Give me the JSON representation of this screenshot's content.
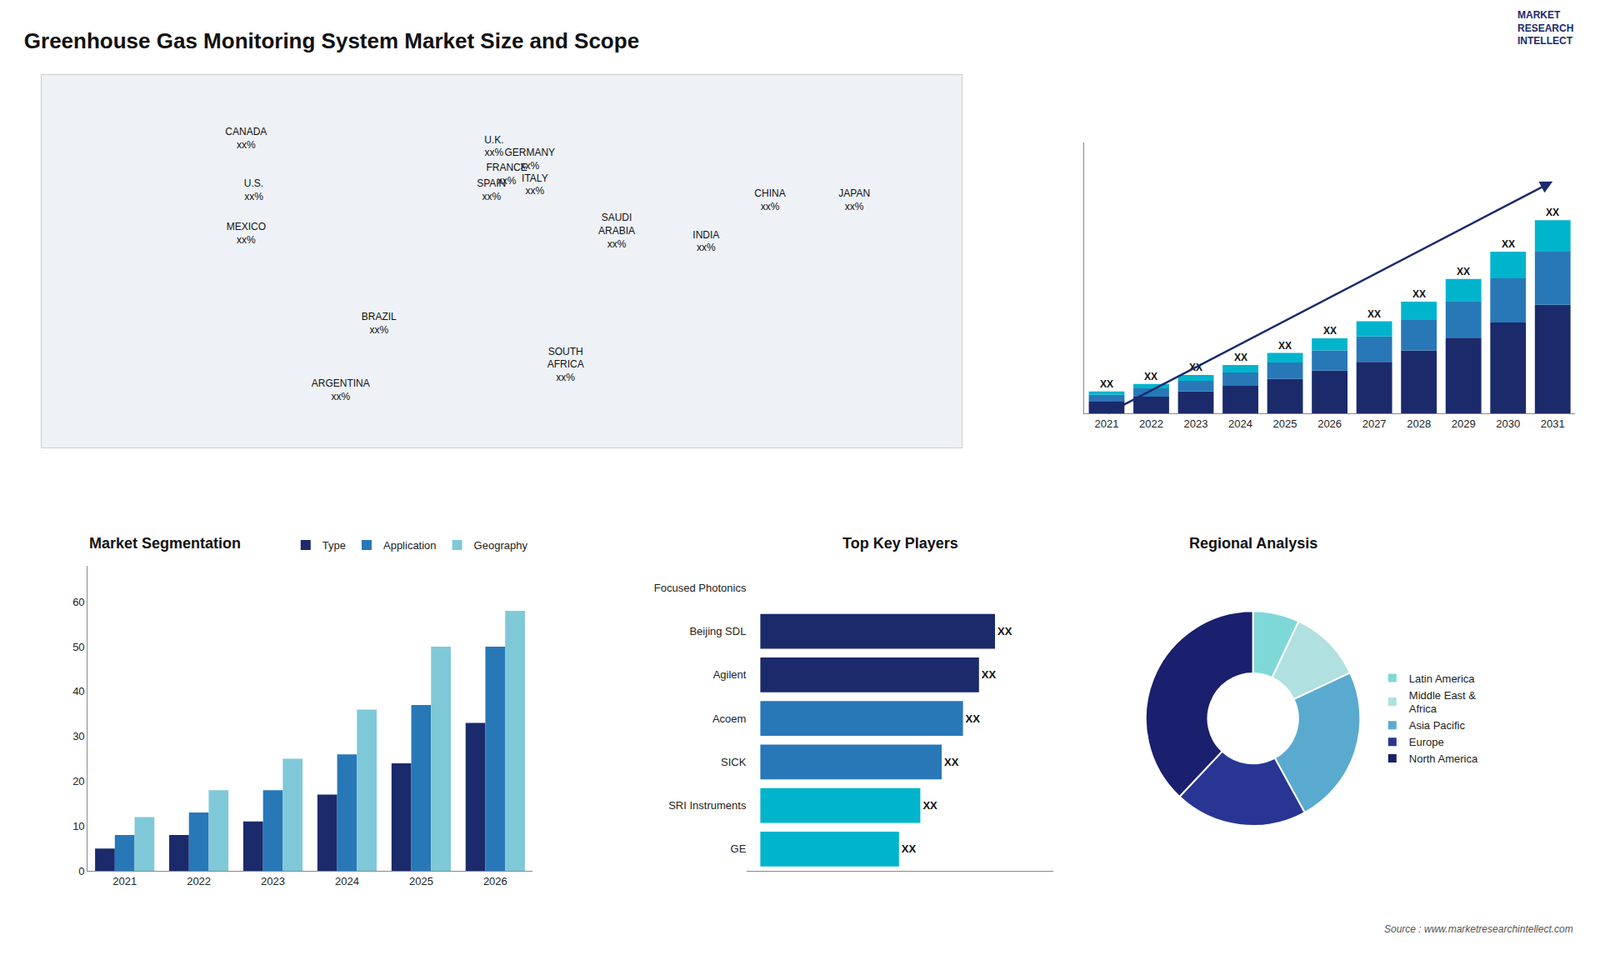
{
  "title": "Greenhouse Gas Monitoring System Market Size and Scope",
  "annotations": [
    "Source : www.marketresearchintellect.com",
    "MARKET\nRESEARCH\nINTELLECT"
  ],
  "chart_data": [
    {
      "type": "scatter",
      "marker": "none",
      "x": [
        -100,
        -97,
        -100,
        -48,
        -63,
        -3,
        2,
        -4,
        11,
        13,
        45,
        25,
        105,
        80,
        138
      ],
      "values": [
        60,
        40,
        23,
        -12,
        -38,
        57,
        46,
        40,
        52,
        42,
        24,
        -28,
        36,
        20,
        36
      ],
      "annotations": [
        "CANADA\nxx%",
        "U.S.\nxx%",
        "MEXICO\nxx%",
        "BRAZIL\nxx%",
        "ARGENTINA\nxx%",
        "U.K.\nxx%",
        "FRANCE\nxx%",
        "SPAIN\nxx%",
        "GERMANY\nxx%",
        "ITALY\nxx%",
        "SAUDI\nARABIA\nxx%",
        "SOUTH\nAFRICA\nxx%",
        "CHINA\nxx%",
        "INDIA\nxx%",
        "JAPAN\nxx%"
      ],
      "xlim": [
        -180,
        180
      ],
      "ylim": [
        -60,
        85
      ],
      "tick_labels": false,
      "grid": false
    },
    {
      "type": "bar",
      "stacked": true,
      "categories": [
        "2021",
        "2022",
        "2023",
        "2024",
        "2025",
        "2026",
        "2027",
        "2028",
        "2029",
        "2030",
        "2031"
      ],
      "series": [
        {
          "color": "#1b2a6b",
          "values": [
            1.0,
            1.35,
            1.75,
            2.2,
            2.75,
            3.4,
            4.1,
            5.0,
            6.0,
            7.2,
            8.6
          ]
        },
        {
          "color": "#2878b8",
          "values": [
            0.5,
            0.65,
            0.85,
            1.05,
            1.3,
            1.6,
            2.0,
            2.4,
            2.9,
            3.5,
            4.2
          ]
        },
        {
          "color": "#00b4cc",
          "values": [
            0.25,
            0.35,
            0.45,
            0.6,
            0.75,
            0.95,
            1.2,
            1.45,
            1.75,
            2.1,
            2.5
          ]
        }
      ],
      "annotations": [
        "XX",
        "XX",
        "XX",
        "XX",
        "XX",
        "XX",
        "XX",
        "XX",
        "XX",
        "XX",
        "XX"
      ],
      "ylim": [
        0,
        21.42
      ],
      "tick_labels": "x",
      "grid": false
    },
    {
      "type": "bar",
      "title": "Market Segmentation",
      "categories": [
        "2021",
        "2022",
        "2023",
        "2024",
        "2025",
        "2026"
      ],
      "series": [
        {
          "name": "Type",
          "color": "#1b2a6b",
          "values": [
            5,
            8,
            11,
            17,
            24,
            33
          ]
        },
        {
          "name": "Application",
          "color": "#2878b8",
          "values": [
            8,
            13,
            18,
            26,
            37,
            50
          ]
        },
        {
          "name": "Geography",
          "color": "#7fc8d8",
          "values": [
            12,
            18,
            25,
            36,
            50,
            58
          ]
        }
      ],
      "ylim": [
        0,
        68
      ],
      "yticks": [
        0,
        10,
        20,
        30,
        40,
        50,
        60
      ],
      "grid": false,
      "legend": "upper right"
    },
    {
      "type": "bar",
      "title": "Top Key Players",
      "orientation": "horizontal",
      "categories": [
        "Focused Photonics",
        "Beijing SDL",
        "Agilent",
        "Acoem",
        "SICK",
        "SRI Instruments",
        "GE"
      ],
      "values": [
        0,
        88,
        82,
        76,
        68,
        60,
        52
      ],
      "colors": [
        "#1b2a6b",
        "#1b2a6b",
        "#1b2a6b",
        "#2878b8",
        "#2878b8",
        "#00b4cc",
        "#00b4cc"
      ],
      "data_labels": true,
      "value_labels": [
        null,
        "XX",
        "XX",
        "XX",
        "XX",
        "XX",
        "XX"
      ],
      "xlim": [
        -5,
        110
      ],
      "tick_labels": "y",
      "grid": false
    },
    {
      "type": "pie",
      "title": "Regional Analysis",
      "categories": [
        "Latin America",
        "Middle East &\nAfrica",
        "Asia Pacific",
        "Europe",
        "North America"
      ],
      "values": [
        7,
        11,
        24,
        20,
        38
      ],
      "colors": [
        "#7fd8d8",
        "#b0e0e0",
        "#5aaad0",
        "#283593",
        "#1a1f6e"
      ],
      "legend": "right"
    }
  ]
}
